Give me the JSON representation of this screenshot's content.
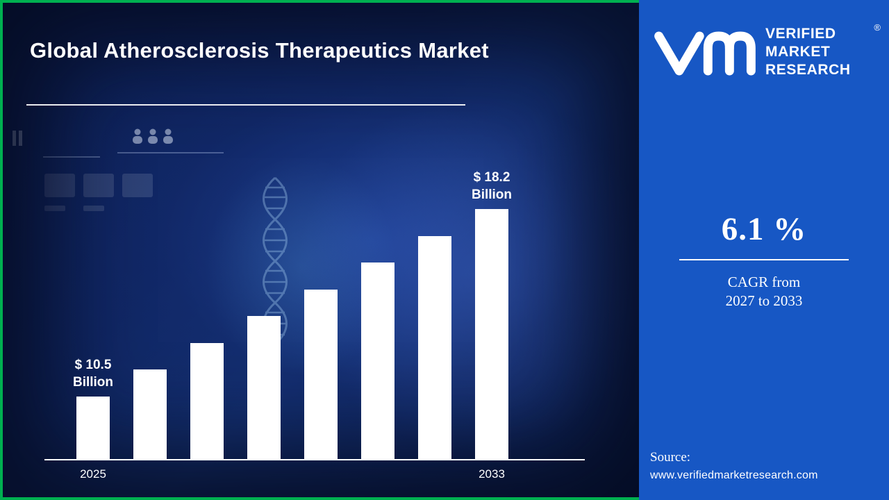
{
  "page": {
    "title": "Global Atherosclerosis Therapeutics Market"
  },
  "colors": {
    "accent_green": "#00b050",
    "panel_blue": "#1757c4",
    "background_navy": "#0b1c4a",
    "bar_white": "#ffffff"
  },
  "chart_data": {
    "type": "bar",
    "title": "Global Atherosclerosis Therapeutics Market",
    "unit": "$ Billion",
    "categories": [
      "2025",
      "",
      "",
      "",
      "",
      "",
      "",
      "2033"
    ],
    "values": [
      10.5,
      11.6,
      12.7,
      13.8,
      14.9,
      16.0,
      17.1,
      18.2
    ],
    "values_estimated": true,
    "visible_x_ticks": [
      "2025",
      "2033"
    ],
    "annotations": [
      {
        "index": 0,
        "lines": [
          "$ 10.5",
          "Billion"
        ]
      },
      {
        "index": 7,
        "lines": [
          "$ 18.2",
          "Billion"
        ]
      }
    ],
    "ylim": [
      0,
      20
    ],
    "grid": false,
    "legend": "none",
    "bar_color": "#ffffff"
  },
  "brand": {
    "logo": "vmr-monogram",
    "name_lines": [
      "VERIFIED",
      "MARKET",
      "RESEARCH"
    ],
    "registered_mark": "®"
  },
  "stats": {
    "cagr_value": "6.1 %",
    "caption_line1": "CAGR from",
    "caption_line2": "2027 to 2033"
  },
  "source": {
    "label": "Source:",
    "url": "www.verifiedmarketresearch.com"
  }
}
